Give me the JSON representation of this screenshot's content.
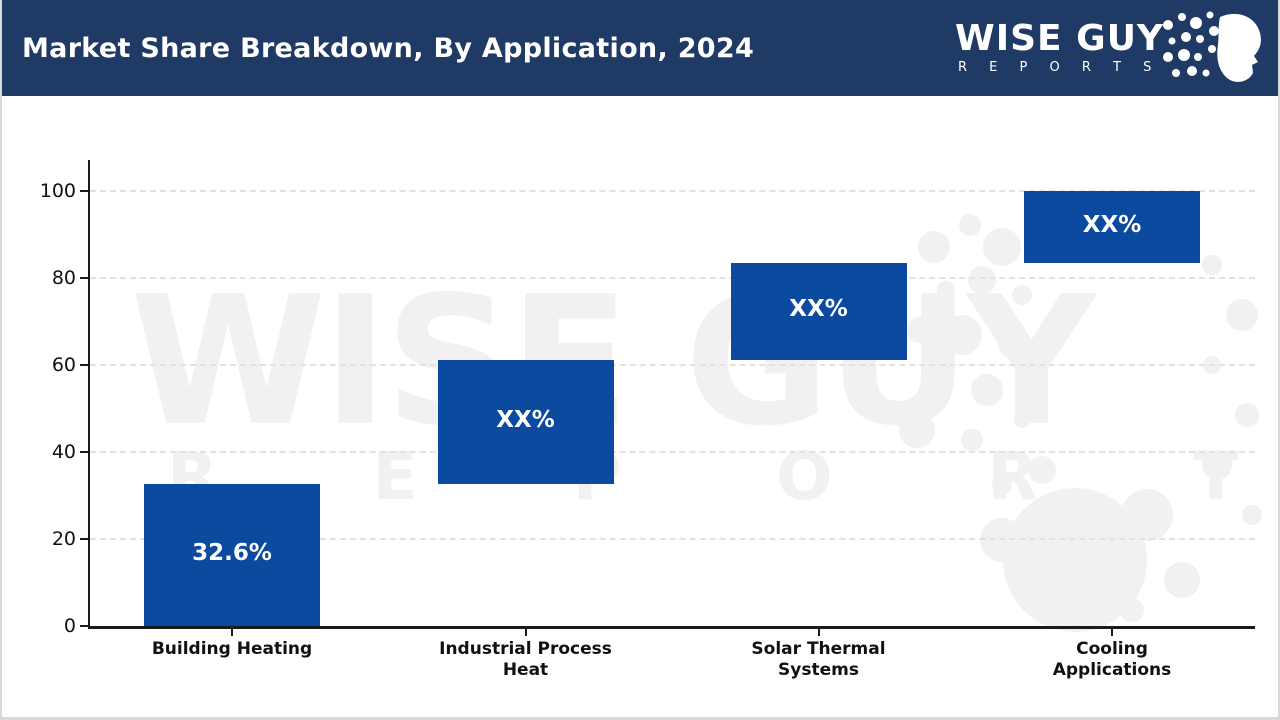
{
  "header": {
    "title": "Market Share Breakdown, By Application, 2024",
    "logo": {
      "wordmark": "WISE GUY",
      "sub": "R E P O R T S"
    }
  },
  "watermark": {
    "wordmark": "WISE GUY",
    "sub": "R E P O R T S"
  },
  "colors": {
    "header_bg": "#203A66",
    "bar": "#0B4A9F",
    "grid": "#e2e2e2",
    "axis": "#1a1a1a",
    "bar_label": "#ffffff",
    "watermark": "#f1f1f4"
  },
  "chart_data": {
    "type": "bar",
    "subtype": "waterfall",
    "title": "Market Share Breakdown, By Application, 2024",
    "categories": [
      "Building Heating",
      "Industrial Process\nHeat",
      "Solar Thermal\nSystems",
      "Cooling\nApplications"
    ],
    "segments": [
      {
        "category": "Building Heating",
        "start": 0,
        "end": 32.6,
        "label": "32.6%"
      },
      {
        "category": "Industrial Process Heat",
        "start": 32.6,
        "end": 61.2,
        "label": "XX%"
      },
      {
        "category": "Solar Thermal Systems",
        "start": 61.2,
        "end": 83.4,
        "label": "XX%"
      },
      {
        "category": "Cooling Applications",
        "start": 83.4,
        "end": 100,
        "label": "XX%"
      }
    ],
    "yticks": [
      0,
      20,
      40,
      60,
      80,
      100
    ],
    "ylim": [
      0,
      105
    ],
    "xlabel": "",
    "ylabel": "",
    "grid": "horizontal-dashed",
    "legend": "none"
  }
}
